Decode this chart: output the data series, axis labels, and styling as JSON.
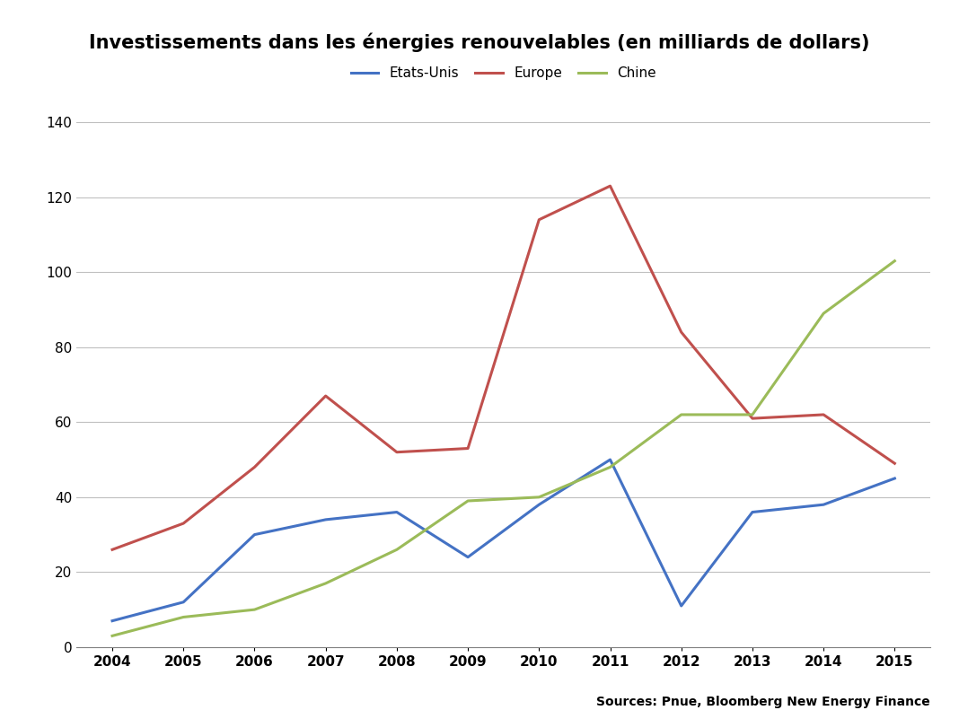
{
  "title": "Investissements dans les énergies renouvelables (en milliards de dollars)",
  "source": "Sources: Pnue, Bloomberg New Energy Finance",
  "years": [
    2004,
    2005,
    2006,
    2007,
    2008,
    2009,
    2010,
    2011,
    2012,
    2013,
    2014,
    2015
  ],
  "etats_unis": [
    7,
    12,
    30,
    34,
    36,
    24,
    38,
    50,
    11,
    36,
    38,
    45
  ],
  "europe": [
    26,
    33,
    48,
    67,
    52,
    53,
    114,
    123,
    84,
    61,
    62,
    49
  ],
  "chine": [
    3,
    8,
    10,
    17,
    26,
    39,
    40,
    48,
    62,
    62,
    89,
    103
  ],
  "etats_unis_color": "#4472C4",
  "europe_color": "#C0504D",
  "chine_color": "#9BBB59",
  "background_color": "#FFFFFF",
  "ylim": [
    0,
    140
  ],
  "yticks": [
    0,
    20,
    40,
    60,
    80,
    100,
    120,
    140
  ],
  "line_width": 2.2,
  "title_fontsize": 15,
  "legend_fontsize": 11,
  "tick_fontsize": 11,
  "source_fontsize": 10
}
